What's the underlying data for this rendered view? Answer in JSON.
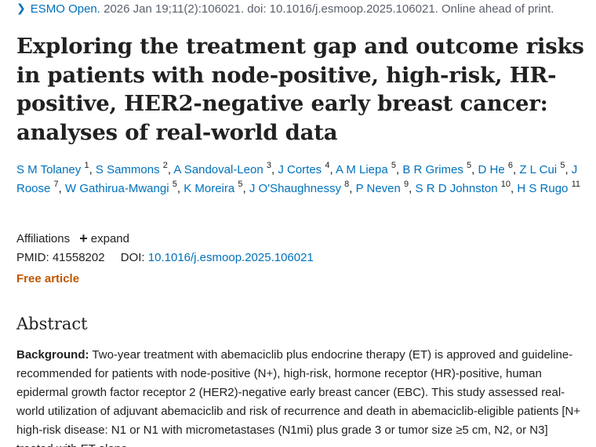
{
  "citation": {
    "journal": "ESMO Open.",
    "details": " 2026 Jan 19;11(2):106021. doi: 10.1016/j.esmoop.2025.106021. Online ahead of print."
  },
  "article": {
    "title": "Exploring the treatment gap and outcome risks in patients with node-positive, high-risk, HR-positive, HER2-negative early breast cancer: analyses of real-world data"
  },
  "authors": [
    {
      "name": "S M Tolaney",
      "aff": "1"
    },
    {
      "name": "S Sammons",
      "aff": "2"
    },
    {
      "name": "A Sandoval-Leon",
      "aff": "3"
    },
    {
      "name": "J Cortes",
      "aff": "4"
    },
    {
      "name": "A M Liepa",
      "aff": "5"
    },
    {
      "name": "B R Grimes",
      "aff": "5"
    },
    {
      "name": "D He",
      "aff": "6"
    },
    {
      "name": "Z L Cui",
      "aff": "5"
    },
    {
      "name": "J Roose",
      "aff": "7"
    },
    {
      "name": "W Gathirua-Mwangi",
      "aff": "5"
    },
    {
      "name": "K Moreira",
      "aff": "5"
    },
    {
      "name": "J O'Shaughnessy",
      "aff": "8"
    },
    {
      "name": "P Neven",
      "aff": "9"
    },
    {
      "name": "S R D Johnston",
      "aff": "10"
    },
    {
      "name": "H S Rugo",
      "aff": "11"
    }
  ],
  "affiliations": {
    "label": "Affiliations",
    "expand_icon": "+",
    "expand_label": "expand"
  },
  "identifiers": {
    "pmid_label": "PMID:",
    "pmid": "41558202",
    "doi_label": "DOI:",
    "doi": "10.1016/j.esmoop.2025.106021"
  },
  "free_article": "Free article",
  "abstract": {
    "heading": "Abstract",
    "background_label": "Background:",
    "background_text": " Two-year treatment with abemaciclib plus endocrine therapy (ET) is approved and guideline-recommended for patients with node-positive (N+), high-risk, hormone receptor (HR)-positive, human epidermal growth factor receptor 2 (HER2)-negative early breast cancer (EBC). This study assessed real-world utilization of adjuvant abemaciclib and risk of recurrence and death in abemaciclib-eligible patients [N+ high-risk disease: N1 or N1 with micrometastases (N1mi) plus grade 3 or tumor size ≥5 cm, N2, or N3] treated with ET alone."
  },
  "colors": {
    "link": "#0071bc",
    "free_article": "#c05600",
    "text": "#212121",
    "muted": "#5b616b"
  }
}
